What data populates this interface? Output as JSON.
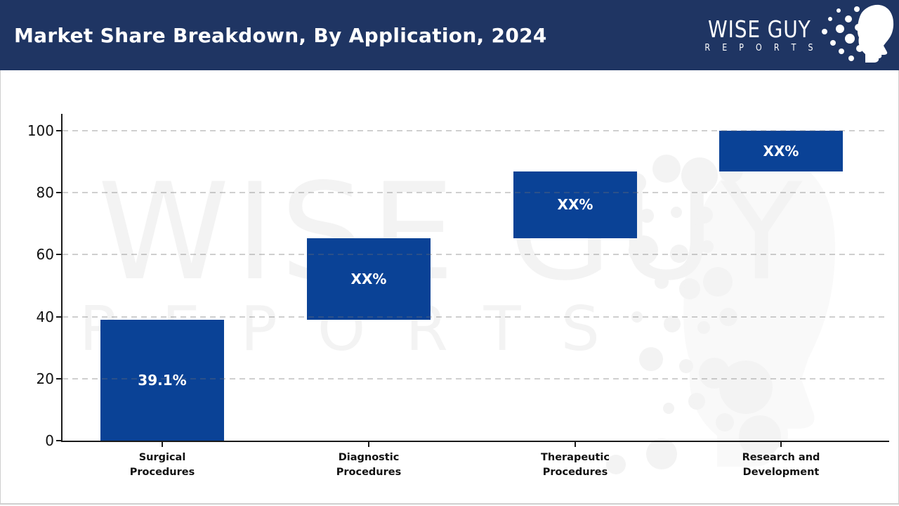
{
  "header": {
    "title": "Market Share Breakdown, By Application, 2024",
    "logo": {
      "brand": "WISE GUY",
      "sub": "R E P O R T S"
    }
  },
  "watermark": {
    "line1": "WISE GUY",
    "line2": "REPORTS"
  },
  "chart_data": {
    "type": "bar",
    "subtype": "waterfall-segments",
    "title": "Market Share Breakdown, By Application, 2024",
    "categories": [
      "Surgical Procedures",
      "Diagnostic Procedures",
      "Therapeutic Procedures",
      "Research and Development"
    ],
    "category_lines": [
      [
        "Surgical",
        "Procedures"
      ],
      [
        "Diagnostic",
        "Procedures"
      ],
      [
        "Therapeutic",
        "Procedures"
      ],
      [
        "Research and",
        "Development"
      ]
    ],
    "segments": [
      {
        "category": "Surgical Procedures",
        "start": 0,
        "end": 39.1,
        "label": "39.1%"
      },
      {
        "category": "Diagnostic Procedures",
        "start": 39.1,
        "end": 65.4,
        "label": "XX%"
      },
      {
        "category": "Therapeutic Procedures",
        "start": 65.4,
        "end": 86.8,
        "label": "XX%"
      },
      {
        "category": "Research and Development",
        "start": 86.8,
        "end": 100,
        "label": "XX%"
      }
    ],
    "yticks": [
      0,
      20,
      40,
      60,
      80,
      100
    ],
    "ylim": [
      0,
      105.5
    ],
    "xlabel": "",
    "ylabel": "",
    "legend": null,
    "grid": {
      "axis": "y",
      "style": "dashed",
      "on": true
    },
    "colors": {
      "bar": "#0a4296",
      "bar_label": "#ffffff",
      "axis": "#1a1a1a",
      "gridline": "#c8c8c8"
    }
  },
  "colors": {
    "header_bg": "#1f3563",
    "canvas_bg": "#ffffff",
    "watermark": "#f3f3f3",
    "frame_border": "#cfcfcf"
  }
}
